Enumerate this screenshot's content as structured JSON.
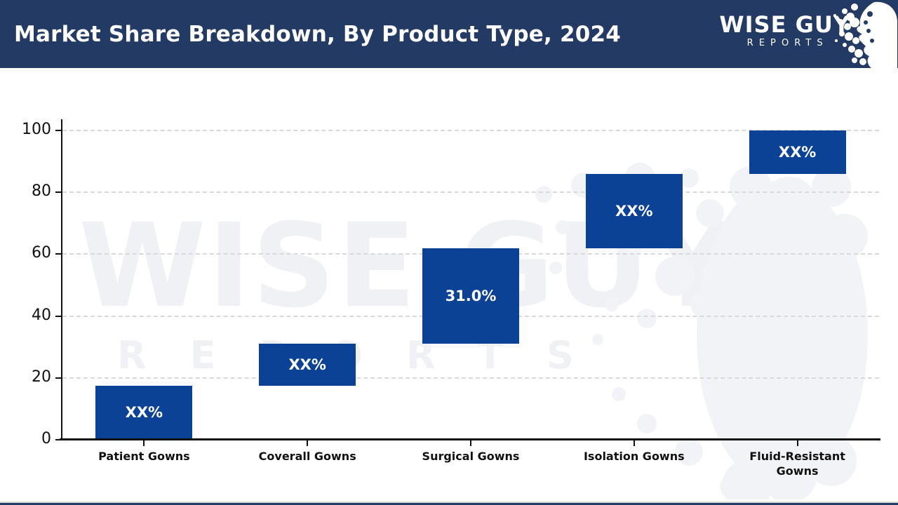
{
  "header": {
    "title": "Market Share Breakdown, By Product Type, 2024",
    "logo": {
      "name_line": "WISE GUY",
      "sub_line": "REPORTS"
    }
  },
  "watermark": {
    "name_line": "WISE GUY",
    "sub_line": "REPORTS"
  },
  "chart_data": {
    "type": "bar",
    "subtype": "floating-waterfall",
    "title": "Market Share Breakdown, By Product Type, 2024",
    "categories": [
      "Patient Gowns",
      "Coverall Gowns",
      "Surgical Gowns",
      "Isolation Gowns",
      "Fluid-Resistant Gowns"
    ],
    "segments": [
      {
        "category": "Patient Gowns",
        "start": 0,
        "end": 17.5,
        "label": "XX%"
      },
      {
        "category": "Coverall Gowns",
        "start": 17.5,
        "end": 31,
        "label": "XX%"
      },
      {
        "category": "Surgical Gowns",
        "start": 31,
        "end": 62,
        "label": "31.0%"
      },
      {
        "category": "Isolation Gowns",
        "start": 62,
        "end": 86,
        "label": "XX%"
      },
      {
        "category": "Fluid-Resistant Gowns",
        "start": 86,
        "end": 100,
        "label": "XX%"
      }
    ],
    "xlabel": "",
    "ylabel": "",
    "ylim": [
      0,
      100
    ],
    "yticks": [
      0,
      20,
      40,
      60,
      80,
      100
    ],
    "grid": "horizontal-dashed",
    "legend": "none",
    "bar_color": "#0c4296",
    "bar_label_color": "#ffffff"
  },
  "colors": {
    "header_bg": "#233a64",
    "footer_bg": "#233a64",
    "bar": "#0c4296",
    "watermark": "#f0f1f4",
    "gridline": "#d9d9d9",
    "axis": "#111111"
  }
}
